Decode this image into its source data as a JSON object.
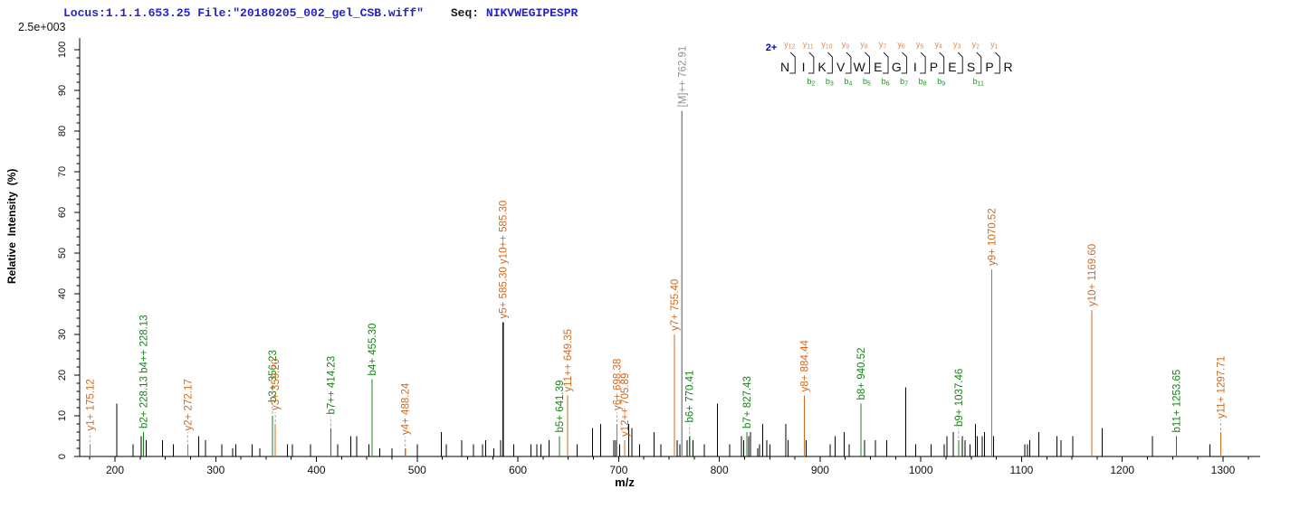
{
  "header": {
    "locus_file": "Locus:1.1.1.653.25 File:\"20180205_002_gel_CSB.wiff\"",
    "seq_label": "Seq:",
    "seq_value": "NIKVWEGIPESPR"
  },
  "y_axis": {
    "title": "Relative  Intensity  (%)",
    "scale_label": "2.5e+003",
    "min": 0,
    "max": 100,
    "major_step": 10,
    "minor_step": 2
  },
  "x_axis": {
    "title": "m/z",
    "display_min": 165,
    "display_max": 1335,
    "first_label": 200,
    "last_label": 1300,
    "major_step": 100,
    "minor_step": 25
  },
  "peptide_diagram": {
    "charge": "2+",
    "residues": [
      "N",
      "I",
      "K",
      "V",
      "W",
      "E",
      "G",
      "I",
      "P",
      "E",
      "S",
      "P",
      "R"
    ],
    "y_ion_labels": [
      "y12",
      "y11",
      "y10",
      "y9",
      "y8",
      "y7",
      "y6",
      "y5",
      "y4",
      "y3",
      "y2",
      "y1"
    ],
    "b_ion_labels": [
      "b2",
      "b3",
      "b4",
      "b5",
      "b6",
      "b7",
      "b8",
      "b9",
      "b11"
    ]
  },
  "colors": {
    "header_blue": "#2323c8",
    "y_ion": "#d2691e",
    "b_ion": "#178217",
    "precursor_gray": "#8f8f8f",
    "peak_black": "#000000",
    "axis_black": "#000000",
    "diagram_y": "#e08a50",
    "diagram_b": "#1f9220",
    "charge_blue": "#0000d0",
    "leader_gray": "#aaaaaa"
  },
  "chart_data": {
    "type": "ms2-peak-spectrum",
    "x_range": [
      165,
      1335
    ],
    "y_range": [
      0,
      100
    ],
    "intensity_full_scale": "2.5e+003",
    "annotated_peaks": [
      {
        "mz": 175.12,
        "intensity": 3,
        "ion": "y",
        "label": "y1+ 175.12",
        "leader": true
      },
      {
        "mz": 228.13,
        "intensity": 6,
        "ion": "b",
        "label": "b2+ 228.13  b4++ 228.13"
      },
      {
        "mz": 272.17,
        "intensity": 3,
        "ion": "y",
        "label": "y2+ 272.17",
        "leader": true
      },
      {
        "mz": 356.23,
        "intensity": 10,
        "ion": "b",
        "label": "b3+ 356.23",
        "leader": true
      },
      {
        "mz": 359.2,
        "intensity": 8,
        "ion": "y",
        "label": "y3+ 359.20",
        "leader": true
      },
      {
        "mz": 414.23,
        "intensity": 7,
        "ion": "b",
        "label": "b7++ 414.23",
        "leader": true
      },
      {
        "mz": 455.3,
        "intensity": 19,
        "ion": "b",
        "label": "b4+ 455.30"
      },
      {
        "mz": 488.24,
        "intensity": 2,
        "ion": "y",
        "label": "y4+ 488.24",
        "leader": true
      },
      {
        "mz": 585.3,
        "intensity": 33,
        "ion": "y",
        "line": "black",
        "label": "y5+ 585.30  y10++ 585.30"
      },
      {
        "mz": 641.39,
        "intensity": 5,
        "ion": "b",
        "label": "b5+ 641.39"
      },
      {
        "mz": 649.35,
        "intensity": 15,
        "ion": "y",
        "label": "y11++ 649.35"
      },
      {
        "mz": 698.38,
        "intensity": 8,
        "ion": "y",
        "label": "y6+ 698.38",
        "leader": true
      },
      {
        "mz": 705.89,
        "intensity": 4,
        "ion": "y",
        "label": "y12++ 705.89"
      },
      {
        "mz": 755.4,
        "intensity": 30,
        "ion": "y",
        "label": "y7+ 755.40"
      },
      {
        "mz": 762.91,
        "intensity": 85,
        "ion": "M",
        "label": "[M]++ 762.91"
      },
      {
        "mz": 770.41,
        "intensity": 5,
        "ion": "b",
        "label": "b6+ 770.41",
        "leader": true
      },
      {
        "mz": 827.43,
        "intensity": 6,
        "ion": "b",
        "label": "b7+ 827.43"
      },
      {
        "mz": 884.44,
        "intensity": 15,
        "ion": "y",
        "label": "y8+ 884.44"
      },
      {
        "mz": 940.52,
        "intensity": 13,
        "ion": "b",
        "label": "b8+ 940.52"
      },
      {
        "mz": 1037.46,
        "intensity": 4,
        "ion": "b",
        "label": "b9+ 1037.46",
        "leader": true
      },
      {
        "mz": 1070.52,
        "intensity": 46,
        "ion": "y",
        "label": "y9+ 1070.52"
      },
      {
        "mz": 1169.6,
        "intensity": 36,
        "ion": "y",
        "label": "y10+ 1169.60"
      },
      {
        "mz": 1253.65,
        "intensity": 5,
        "ion": "b",
        "label": "b11+ 1253.65"
      },
      {
        "mz": 1297.71,
        "intensity": 6,
        "ion": "y",
        "label": "y11+ 1297.71",
        "leader": true
      }
    ],
    "unannotated_peaks": [
      [
        202,
        13
      ],
      [
        218,
        3
      ],
      [
        226,
        5
      ],
      [
        231,
        4
      ],
      [
        247,
        4
      ],
      [
        258,
        3
      ],
      [
        283,
        5
      ],
      [
        290,
        4
      ],
      [
        306,
        3
      ],
      [
        317,
        2
      ],
      [
        320,
        3
      ],
      [
        336,
        3
      ],
      [
        344,
        2
      ],
      [
        371,
        3
      ],
      [
        376,
        3
      ],
      [
        394,
        3
      ],
      [
        421,
        3
      ],
      [
        434,
        5
      ],
      [
        440,
        5
      ],
      [
        452,
        3
      ],
      [
        463,
        2
      ],
      [
        475,
        2
      ],
      [
        500,
        3
      ],
      [
        524,
        6
      ],
      [
        529,
        3
      ],
      [
        544,
        4
      ],
      [
        556,
        3
      ],
      [
        565,
        3
      ],
      [
        568,
        4
      ],
      [
        576,
        2
      ],
      [
        583,
        4
      ],
      [
        596,
        3
      ],
      [
        613,
        3
      ],
      [
        619,
        3
      ],
      [
        623,
        3
      ],
      [
        631,
        4
      ],
      [
        659,
        3
      ],
      [
        674,
        7
      ],
      [
        682,
        8
      ],
      [
        695,
        4
      ],
      [
        697,
        4
      ],
      [
        701,
        3
      ],
      [
        710,
        8
      ],
      [
        713,
        7
      ],
      [
        721,
        3
      ],
      [
        735,
        6
      ],
      [
        742,
        3
      ],
      [
        758,
        4
      ],
      [
        761,
        3
      ],
      [
        768,
        4
      ],
      [
        774,
        4
      ],
      [
        785,
        3
      ],
      [
        798,
        13
      ],
      [
        810,
        3
      ],
      [
        822,
        5
      ],
      [
        824,
        4
      ],
      [
        829,
        5
      ],
      [
        831,
        6
      ],
      [
        838,
        2
      ],
      [
        840,
        3
      ],
      [
        843,
        8
      ],
      [
        847,
        4
      ],
      [
        850,
        3
      ],
      [
        866,
        8
      ],
      [
        868,
        4
      ],
      [
        886,
        4
      ],
      [
        910,
        3
      ],
      [
        915,
        5
      ],
      [
        924,
        6
      ],
      [
        929,
        3
      ],
      [
        944,
        4
      ],
      [
        955,
        4
      ],
      [
        966,
        4
      ],
      [
        985,
        17
      ],
      [
        995,
        3
      ],
      [
        1010,
        3
      ],
      [
        1023,
        3
      ],
      [
        1026,
        5
      ],
      [
        1032,
        6
      ],
      [
        1041,
        5
      ],
      [
        1044,
        4
      ],
      [
        1049,
        3
      ],
      [
        1054,
        8
      ],
      [
        1056,
        5
      ],
      [
        1061,
        5
      ],
      [
        1063,
        6
      ],
      [
        1072,
        5
      ],
      [
        1103,
        3
      ],
      [
        1106,
        3
      ],
      [
        1108,
        4
      ],
      [
        1117,
        6
      ],
      [
        1135,
        5
      ],
      [
        1139,
        4
      ],
      [
        1151,
        5
      ],
      [
        1180,
        7
      ],
      [
        1230,
        5
      ],
      [
        1287,
        3
      ]
    ]
  }
}
